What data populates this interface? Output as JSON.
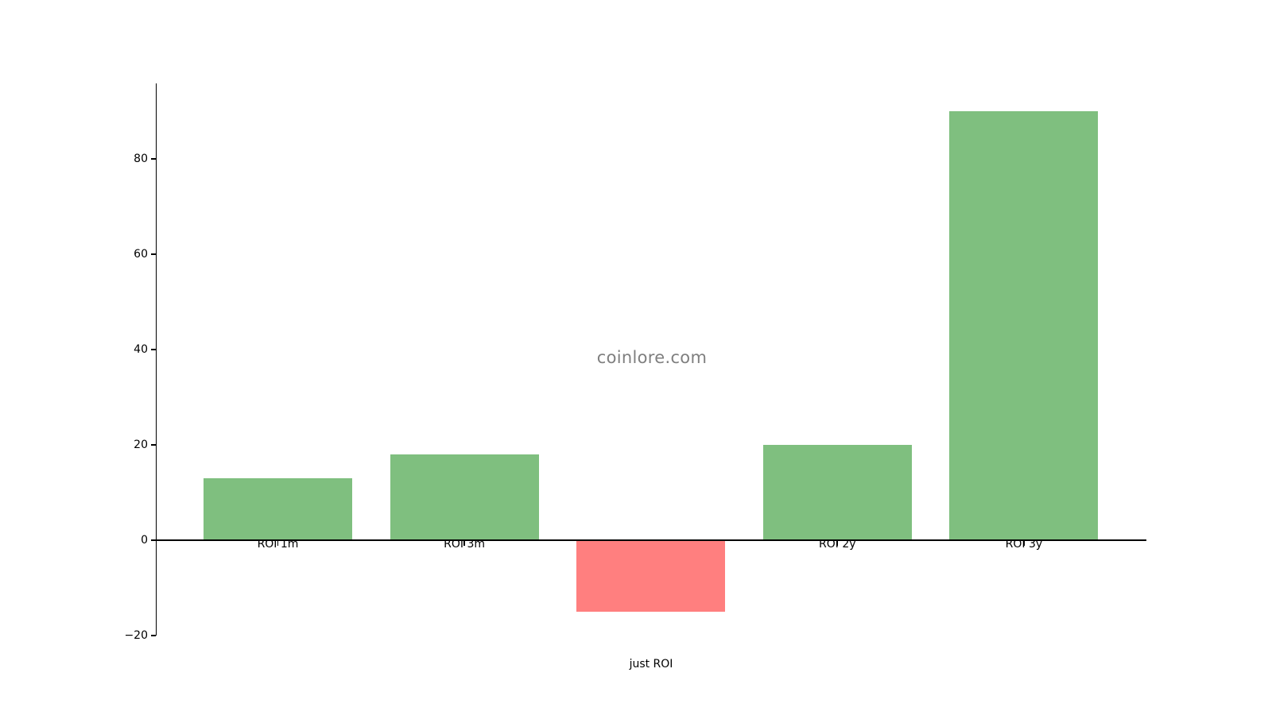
{
  "watermark": {
    "text": "coinlore.com",
    "color": "#7f7f7f"
  },
  "chart_data": {
    "type": "bar",
    "title": "",
    "xlabel": "just ROI",
    "ylabel": "",
    "categories": [
      "ROI 1m",
      "ROI 3m",
      "",
      "ROI 2y",
      "ROI 3y"
    ],
    "values": [
      13,
      18,
      -15,
      20,
      90
    ],
    "bar_colors": [
      "#7fbf7f",
      "#7fbf7f",
      "#ff7f7f",
      "#7fbf7f",
      "#7fbf7f"
    ],
    "positive_color": "#7fbf7f",
    "negative_color": "#ff7f7f",
    "axis_color": "#000000",
    "tick_label_color": "#000000",
    "ylim": [
      -20,
      95.8
    ],
    "yticks": [
      -20,
      0,
      20,
      40,
      60,
      80
    ],
    "grid": false,
    "legend": false,
    "note": "third bar (red, negative) has no visible category label; its tick label is covered by the bar"
  }
}
